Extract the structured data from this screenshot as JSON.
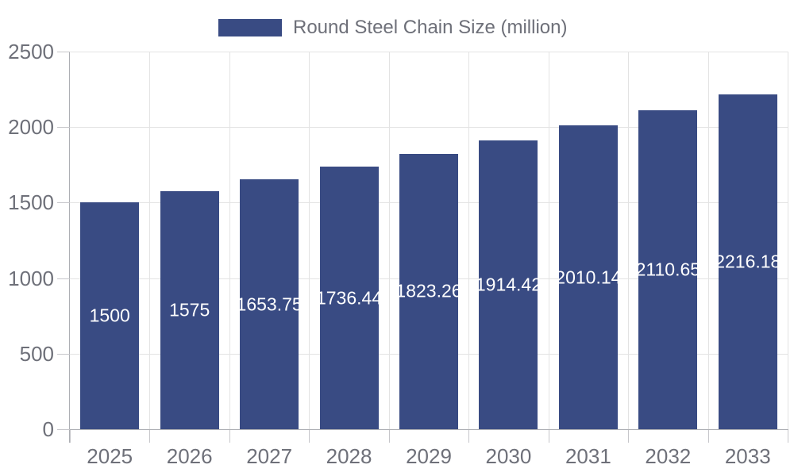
{
  "legend": {
    "label": "Round Steel Chain Size (million)"
  },
  "colors": {
    "bar": "#394B83",
    "grid": "#E3E3E3",
    "axis_line": "#ADAFB4",
    "axis_tick": "#C6C6CA",
    "axis_text": "#6E7079",
    "bar_label_text": "#FFFFFF",
    "background": "#FFFFFF"
  },
  "chart_data": {
    "type": "bar",
    "title": "Round Steel Chain Size (million)",
    "xlabel": "",
    "ylabel": "",
    "categories": [
      "2025",
      "2026",
      "2027",
      "2028",
      "2029",
      "2030",
      "2031",
      "2032",
      "2033"
    ],
    "series": [
      {
        "name": "Round Steel Chain Size (million)",
        "values": [
          1500,
          1575,
          1653.75,
          1736.44,
          1823.26,
          1914.42,
          2010.14,
          2110.65,
          2216.18
        ],
        "value_labels": [
          "1500",
          "1575",
          "1653.75",
          "1736.44",
          "1823.26",
          "1914.42",
          "2010.14",
          "2110.65",
          "2216.18"
        ]
      }
    ],
    "y_ticks": [
      0,
      500,
      1000,
      1500,
      2000,
      2500
    ],
    "ylim": [
      0,
      2500
    ],
    "grid": true,
    "legend_position": "top-center",
    "bar_label_position": "inside-center"
  }
}
